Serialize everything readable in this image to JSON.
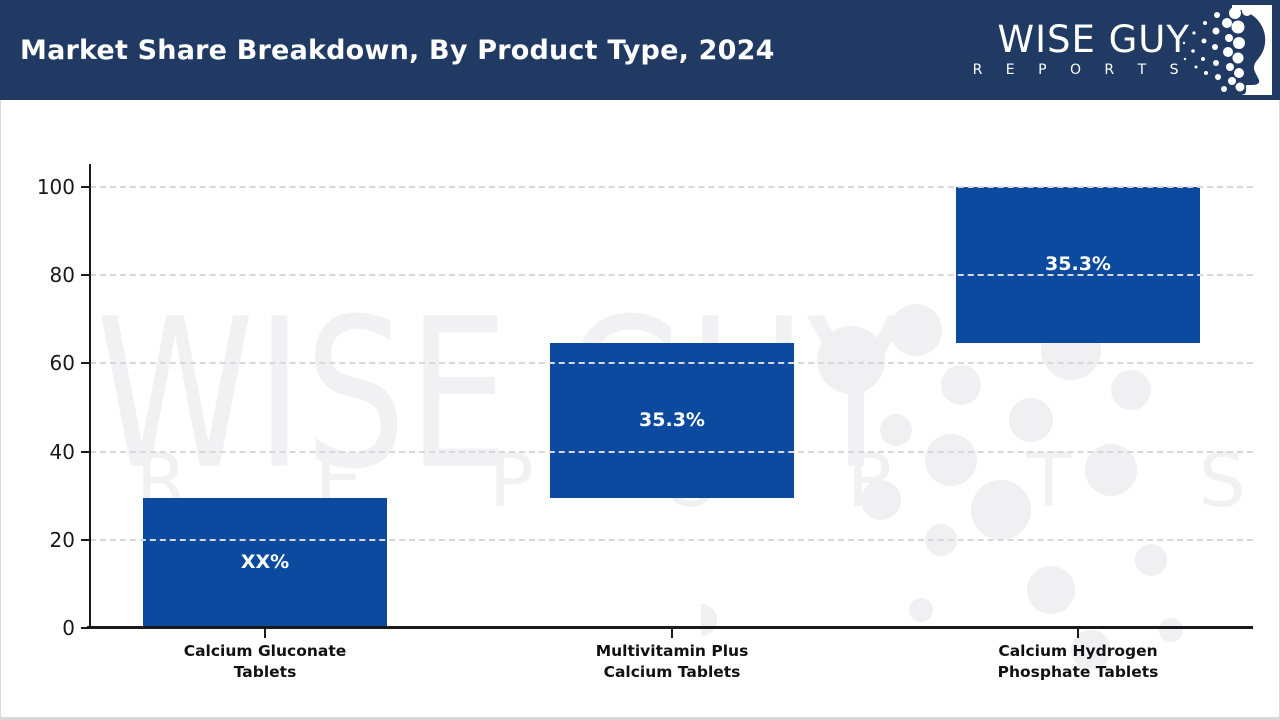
{
  "header": {
    "title": "Market Share Breakdown, By Product Type, 2024",
    "logo": {
      "line1": "WISE GUY",
      "line2": "R E P O R T S"
    },
    "bg_color": "#203a64"
  },
  "watermark": {
    "line1": "WISE GUY",
    "line2": "R E P O R T S"
  },
  "chart_data": {
    "type": "bar",
    "subtype": "waterfall",
    "title": "Market Share Breakdown, By Product Type, 2024",
    "xlabel": "",
    "ylabel": "",
    "ylim": [
      0,
      105
    ],
    "yticks": [
      0,
      20,
      40,
      60,
      80,
      100
    ],
    "grid": "horizontal dashed",
    "legend": "none",
    "bar_color": "#0b4a9e",
    "value_label_color": "#ffffff",
    "categories": [
      {
        "lines": [
          "Calcium Gluconate",
          "Tablets"
        ]
      },
      {
        "lines": [
          "Multivitamin Plus",
          "Calcium Tablets"
        ]
      },
      {
        "lines": [
          "Calcium Hydrogen",
          "Phosphate Tablets"
        ]
      }
    ],
    "series": [
      {
        "name": "Market Share (%)",
        "segments": [
          {
            "category": "Calcium Gluconate Tablets",
            "start": 0,
            "end": 29.4,
            "label": "XX%"
          },
          {
            "category": "Multivitamin Plus Calcium Tablets",
            "start": 29.4,
            "end": 64.7,
            "label": "35.3%"
          },
          {
            "category": "Calcium Hydrogen Phosphate Tablets",
            "start": 64.7,
            "end": 100,
            "label": "35.3%"
          }
        ]
      }
    ]
  }
}
